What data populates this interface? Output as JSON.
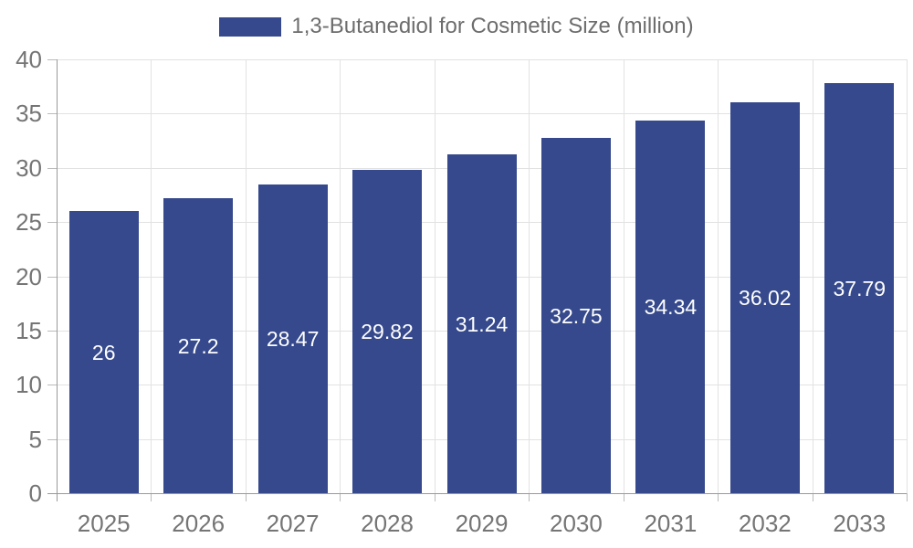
{
  "legend": {
    "label": "1,3-Butanediol for Cosmetic Size (million)"
  },
  "chart_data": {
    "type": "bar",
    "title": "",
    "categories": [
      "2025",
      "2026",
      "2027",
      "2028",
      "2029",
      "2030",
      "2031",
      "2032",
      "2033"
    ],
    "series": [
      {
        "name": "1,3-Butanediol for Cosmetic Size (million)",
        "values": [
          26,
          27.2,
          28.47,
          29.82,
          31.24,
          32.75,
          34.34,
          36.02,
          37.79
        ]
      }
    ],
    "value_labels": [
      "26",
      "27.2",
      "28.47",
      "29.82",
      "31.24",
      "32.75",
      "34.34",
      "36.02",
      "37.79"
    ],
    "xlabel": "",
    "ylabel": "",
    "ylim": [
      0,
      40
    ],
    "yticks": [
      0,
      5,
      10,
      15,
      20,
      25,
      30,
      35,
      40
    ],
    "grid": "horizontal lines at every y tick, vertical lines at category boundaries",
    "legend_position": "top-center",
    "value_label_position": "inside-center",
    "colors": {
      "bar": "#35498C",
      "grid": "#E2E2E2",
      "axis": "#9A9A9A",
      "tick": "#BBBBBB",
      "tick_label": "#757575",
      "legend_text": "#6D6D6D",
      "value_label": "#FFFFFF",
      "background": "#FFFFFF"
    }
  }
}
